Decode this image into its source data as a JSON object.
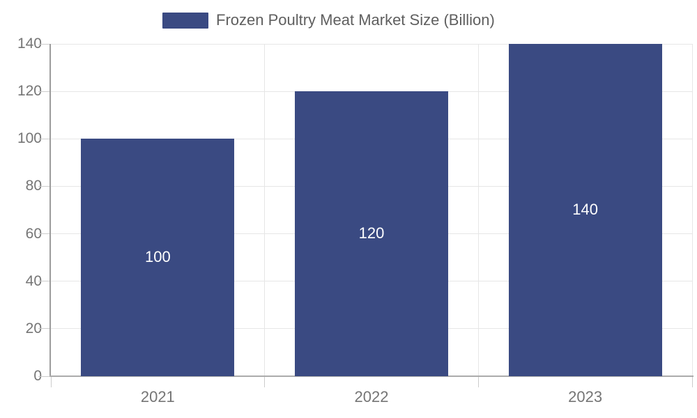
{
  "legend": {
    "item_label": "Frozen Poultry Meat Market Size (Billion)",
    "swatch_color": "#3a4a82"
  },
  "chart_data": {
    "type": "bar",
    "title": "Frozen Poultry Meat Market Size (Billion)",
    "series_name": "Frozen Poultry Meat Market Size (Billion)",
    "categories": [
      "2021",
      "2022",
      "2023"
    ],
    "values": [
      100,
      120,
      140
    ],
    "data_labels": [
      "100",
      "120",
      "140"
    ],
    "xlabel": "",
    "ylabel": "",
    "ylim": [
      0,
      140
    ],
    "y_ticks": [
      0,
      20,
      40,
      60,
      80,
      100,
      120,
      140
    ],
    "grid": true,
    "legend_position": "top",
    "bar_color": "#3a4a82",
    "data_label_color": "#ffffff",
    "axis_text_color": "#757575",
    "grid_color": "#e6e6e6",
    "axis_line_color": "#9c9c9c"
  }
}
